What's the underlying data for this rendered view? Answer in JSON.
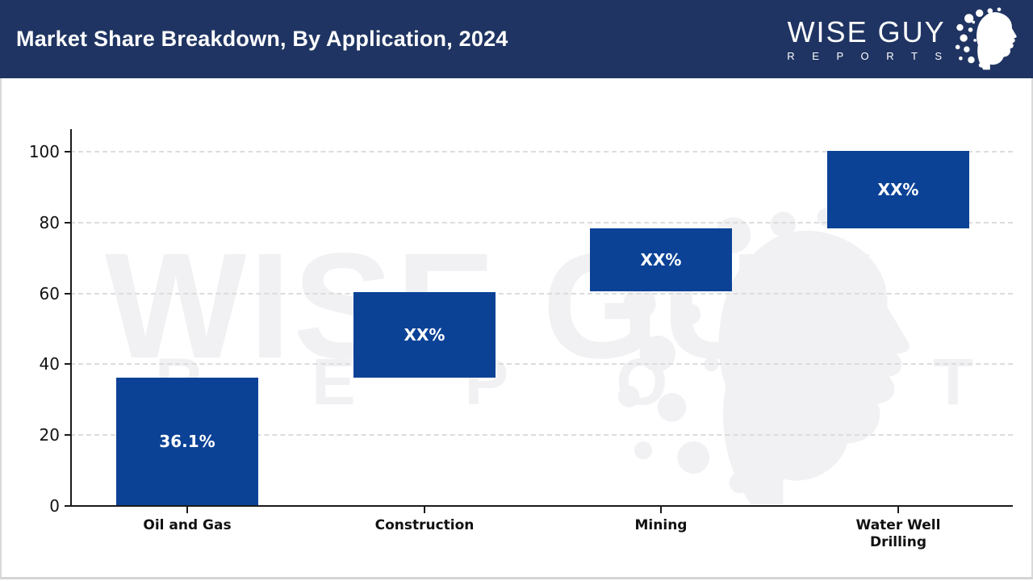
{
  "header": {
    "title": "Market Share Breakdown, By Application, 2024",
    "logo": {
      "line1": "WISE GUY",
      "line2": "R E P O R T S"
    }
  },
  "watermark": {
    "line1": "WISE GUY",
    "line2": "R E P O R T S"
  },
  "colors": {
    "header_bg": "#1f3462",
    "bar": "#0b4296",
    "grid": "#dcdcdc",
    "axis": "#1a1a1a",
    "bar_label": "#ffffff",
    "watermark": "#f1f1f4"
  },
  "chart_data": {
    "type": "bar",
    "subtype": "waterfall",
    "title": "Market Share Breakdown, By Application, 2024",
    "xlabel": "",
    "ylabel": "",
    "categories": [
      "Oil and Gas",
      "Construction",
      "Mining",
      "Water Well Drilling"
    ],
    "segments": [
      {
        "category": "Oil and Gas",
        "start": 0,
        "end": 36.1,
        "label": "36.1%"
      },
      {
        "category": "Construction",
        "start": 36.1,
        "end": 60.2,
        "label": "XX%"
      },
      {
        "category": "Mining",
        "start": 60.4,
        "end": 78.2,
        "label": "XX%"
      },
      {
        "category": "Water Well Drilling",
        "start": 78.2,
        "end": 100,
        "label": "XX%"
      }
    ],
    "yticks": [
      0,
      20,
      40,
      60,
      80,
      100
    ],
    "ylim": [
      0,
      106
    ],
    "grid": "dashed-horizontal",
    "legend": "none"
  }
}
